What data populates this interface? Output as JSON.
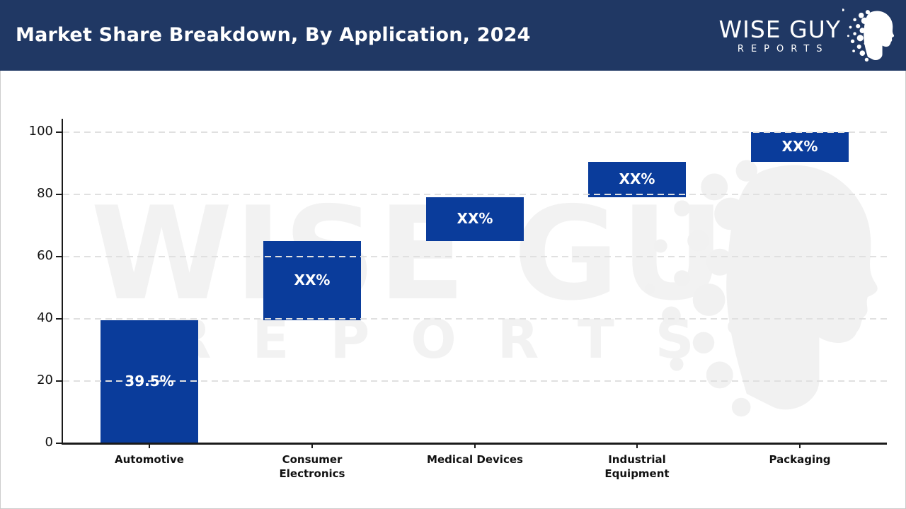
{
  "header": {
    "title": "Market Share Breakdown, By Application, 2024",
    "logo": {
      "line1": "WISE GUY",
      "line2": "REPORTS"
    }
  },
  "watermark": {
    "line1": "WISE GUY",
    "line2": "REPORTS"
  },
  "colors": {
    "header_bg": "#203864",
    "bar": "#0a3c9b",
    "grid": "#e0e0e0",
    "axis": "#1a1a1a",
    "watermark": "#f2f2f2"
  },
  "chart_data": {
    "type": "bar",
    "subtype": "waterfall",
    "title": "Market Share Breakdown, By Application, 2024",
    "categories": [
      "Automotive",
      "Consumer Electronics",
      "Medical Devices",
      "Industrial Equipment",
      "Packaging"
    ],
    "segments": [
      {
        "category": "Automotive",
        "from": 0,
        "to": 39.5,
        "label": "39.5%"
      },
      {
        "category": "Consumer Electronics",
        "from": 39.5,
        "to": 65,
        "label": "XX%"
      },
      {
        "category": "Medical Devices",
        "from": 65,
        "to": 79,
        "label": "XX%"
      },
      {
        "category": "Industrial Equipment",
        "from": 79,
        "to": 90.5,
        "label": "XX%"
      },
      {
        "category": "Packaging",
        "from": 90.5,
        "to": 100,
        "label": "XX%"
      }
    ],
    "xlabel": "",
    "ylabel": "",
    "ylim": [
      0,
      100
    ],
    "yticks": [
      0,
      20,
      40,
      60,
      80,
      100
    ],
    "grid": "horizontal-dashed",
    "legend": "none"
  }
}
